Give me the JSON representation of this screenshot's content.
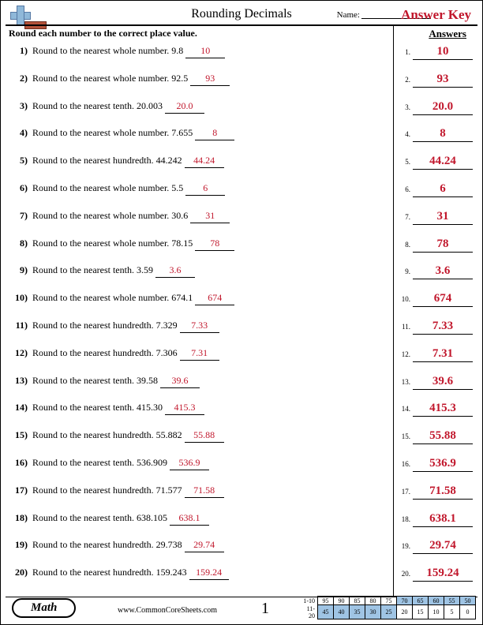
{
  "header": {
    "title": "Rounding Decimals",
    "name_label": "Name:",
    "answer_key": "Answer Key"
  },
  "instructions": "Round each number to the correct place value.",
  "answers_heading": "Answers",
  "problems": [
    {
      "n": "1)",
      "text": "Round to the nearest whole number. 9.8",
      "ans": "10"
    },
    {
      "n": "2)",
      "text": "Round to the nearest whole number. 92.5",
      "ans": "93"
    },
    {
      "n": "3)",
      "text": "Round to the nearest tenth. 20.003",
      "ans": "20.0"
    },
    {
      "n": "4)",
      "text": "Round to the nearest whole number. 7.655",
      "ans": "8"
    },
    {
      "n": "5)",
      "text": "Round to the nearest hundredth. 44.242",
      "ans": "44.24"
    },
    {
      "n": "6)",
      "text": "Round to the nearest whole number. 5.5",
      "ans": "6"
    },
    {
      "n": "7)",
      "text": "Round to the nearest whole number. 30.6",
      "ans": "31"
    },
    {
      "n": "8)",
      "text": "Round to the nearest whole number. 78.15",
      "ans": "78"
    },
    {
      "n": "9)",
      "text": "Round to the nearest tenth. 3.59",
      "ans": "3.6"
    },
    {
      "n": "10)",
      "text": "Round to the nearest whole number. 674.1",
      "ans": "674"
    },
    {
      "n": "11)",
      "text": "Round to the nearest hundredth. 7.329",
      "ans": "7.33"
    },
    {
      "n": "12)",
      "text": "Round to the nearest hundredth. 7.306",
      "ans": "7.31"
    },
    {
      "n": "13)",
      "text": "Round to the nearest tenth. 39.58",
      "ans": "39.6"
    },
    {
      "n": "14)",
      "text": "Round to the nearest tenth. 415.30",
      "ans": "415.3"
    },
    {
      "n": "15)",
      "text": "Round to the nearest hundredth. 55.882",
      "ans": "55.88"
    },
    {
      "n": "16)",
      "text": "Round to the nearest tenth. 536.909",
      "ans": "536.9"
    },
    {
      "n": "17)",
      "text": "Round to the nearest hundredth. 71.577",
      "ans": "71.58"
    },
    {
      "n": "18)",
      "text": "Round to the nearest tenth. 638.105",
      "ans": "638.1"
    },
    {
      "n": "19)",
      "text": "Round to the nearest hundredth. 29.738",
      "ans": "29.74"
    },
    {
      "n": "20)",
      "text": "Round to the nearest hundredth. 159.243",
      "ans": "159.24"
    }
  ],
  "footer": {
    "subject": "Math",
    "site": "www.CommonCoreSheets.com",
    "page": "1",
    "score_rows": [
      {
        "label": "1-10",
        "cells": [
          "95",
          "90",
          "85",
          "80",
          "75",
          "70",
          "65",
          "60",
          "55",
          "50"
        ],
        "shade_from": 5
      },
      {
        "label": "11-20",
        "cells": [
          "45",
          "40",
          "35",
          "30",
          "25",
          "20",
          "15",
          "10",
          "5",
          "0"
        ],
        "shade_from": 0,
        "shade_to": 5
      }
    ]
  },
  "colors": {
    "answer_red": "#c1172c",
    "shade_blue": "#9fc4e4"
  }
}
